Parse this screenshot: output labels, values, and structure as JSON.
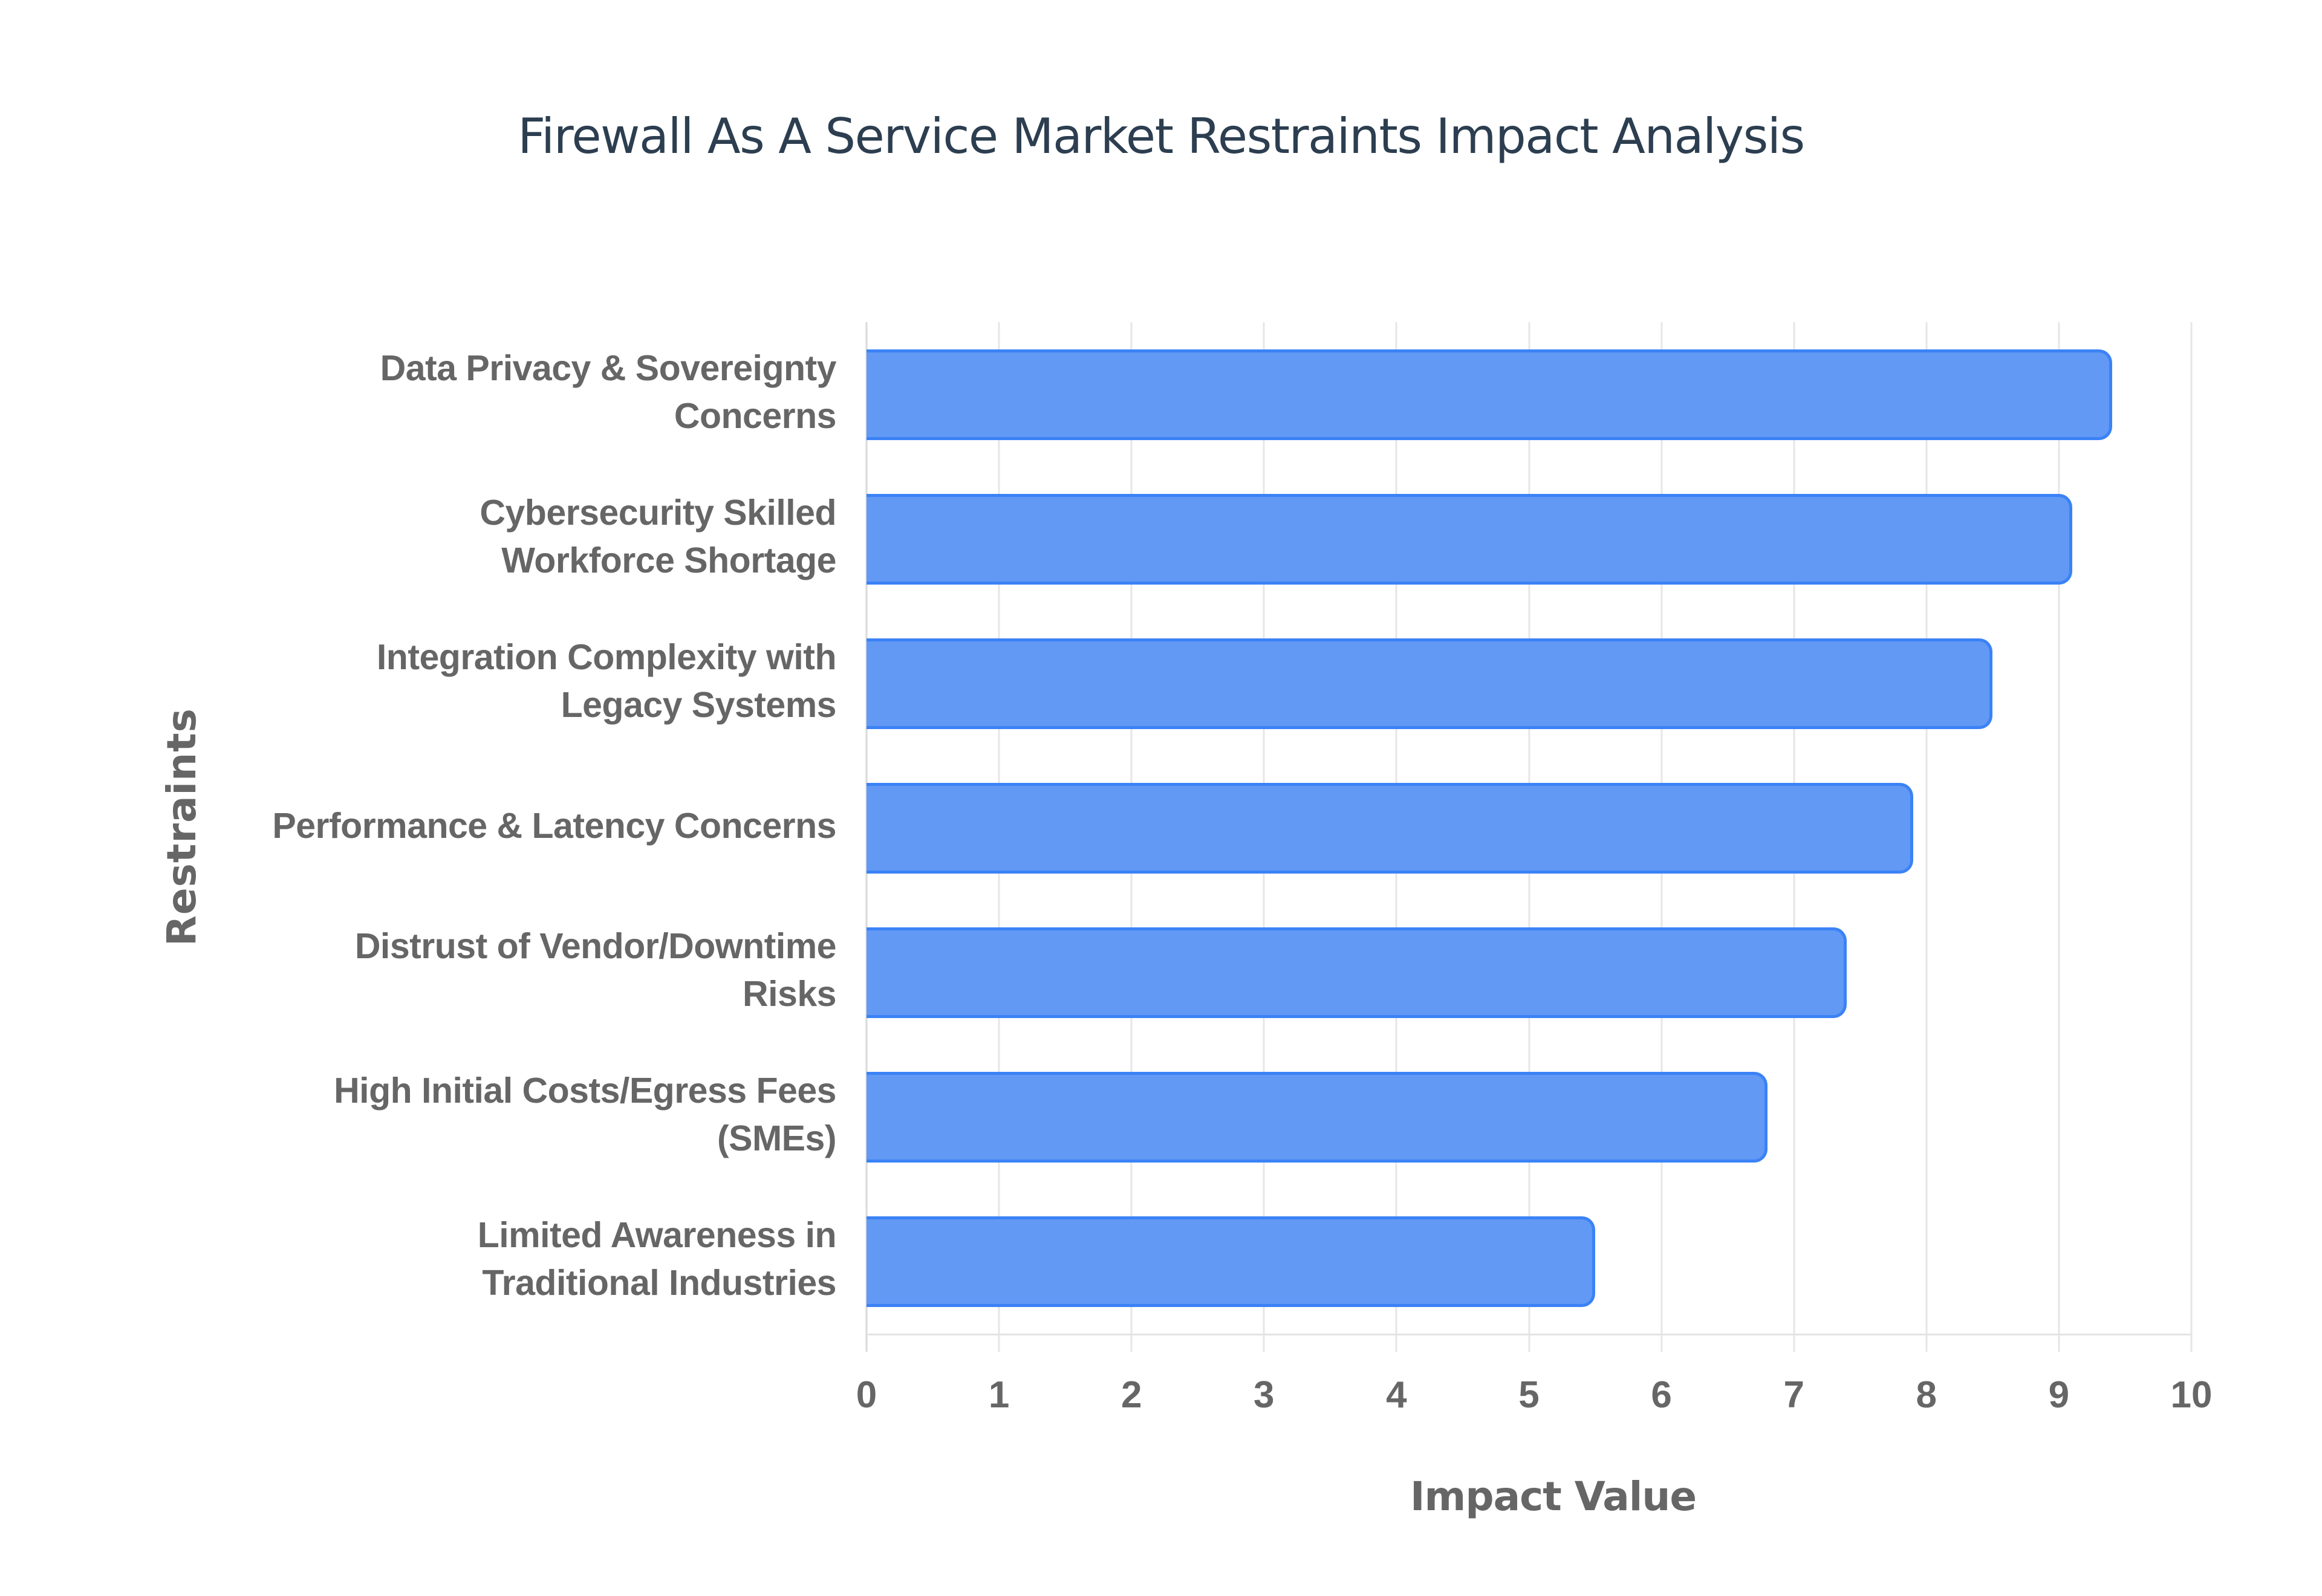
{
  "chart": {
    "title": "Firewall As A Service Market Restraints Impact Analysis",
    "x_axis_title": "Impact Value",
    "y_axis_title": "Restraints",
    "x_ticks": [
      "0",
      "1",
      "2",
      "3",
      "4",
      "5",
      "6",
      "7",
      "8",
      "9",
      "10"
    ],
    "bars": [
      {
        "label_lines": [
          "Data Privacy & Sovereignty",
          "Concerns"
        ],
        "value": 9.4
      },
      {
        "label_lines": [
          "Cybersecurity Skilled",
          "Workforce Shortage"
        ],
        "value": 9.1
      },
      {
        "label_lines": [
          "Integration Complexity with",
          "Legacy Systems"
        ],
        "value": 8.5
      },
      {
        "label_lines": [
          "Performance & Latency Concerns"
        ],
        "value": 7.9
      },
      {
        "label_lines": [
          "Distrust of Vendor/Downtime",
          "Risks"
        ],
        "value": 7.4
      },
      {
        "label_lines": [
          "High Initial Costs/Egress Fees",
          "(SMEs)"
        ],
        "value": 6.8
      },
      {
        "label_lines": [
          "Limited Awareness in",
          "Traditional Industries"
        ],
        "value": 5.5
      }
    ],
    "colors": {
      "bar_fill": "#6199f4",
      "bar_border": "#3b82f6",
      "title": "#2c3e50",
      "axis_text": "#666666",
      "grid": "#e6e6e6"
    }
  },
  "chart_data": {
    "type": "bar",
    "orientation": "horizontal",
    "title": "Firewall As A Service Market Restraints Impact Analysis",
    "xlabel": "Impact Value",
    "ylabel": "Restraints",
    "categories": [
      "Data Privacy & Sovereignty Concerns",
      "Cybersecurity Skilled Workforce Shortage",
      "Integration Complexity with Legacy Systems",
      "Performance & Latency Concerns",
      "Distrust of Vendor/Downtime Risks",
      "High Initial Costs/Egress Fees (SMEs)",
      "Limited Awareness in Traditional Industries"
    ],
    "values": [
      9.4,
      9.1,
      8.5,
      7.9,
      7.4,
      6.8,
      5.5
    ],
    "xlim": [
      0,
      10
    ],
    "x_ticks": [
      0,
      1,
      2,
      3,
      4,
      5,
      6,
      7,
      8,
      9,
      10
    ],
    "grid": {
      "vertical": true,
      "horizontal": false
    },
    "legend": null
  }
}
